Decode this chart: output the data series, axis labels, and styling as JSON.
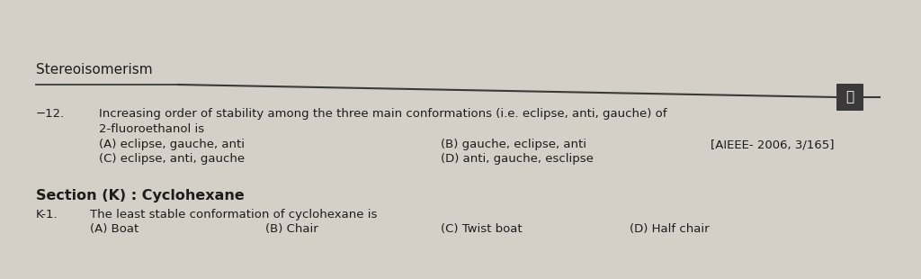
{
  "background_color": "#d4d0c8",
  "section_header": "Stereoisomerism",
  "q_number": "−12.",
  "q_text_line1": "Increasing order of stability among the three main conformations (i.e. eclipse, anti, gauche) of",
  "q_text_line2": "2-fluoroethanol is",
  "opt_A": "(A) eclipse, gauche, anti",
  "opt_B": "(B) gauche, eclipse, anti",
  "opt_C": "(C) eclipse, anti, gauche",
  "opt_D": "(D) anti, gauche, esclipse",
  "citation": "[AIEEE- 2006, 3/165]",
  "section2_header": "Section (K) : Cyclohexane",
  "k1_number": "K-1.",
  "k1_text": "The least stable conformation of cyclohexane is",
  "k1_opt_A": "(A) Boat",
  "k1_opt_B": "(B) Chair",
  "k1_opt_C": "(C) Twist boat",
  "k1_opt_D": "(D) Half chair",
  "text_color": "#1c1c1c",
  "line_color": "#3a3a3a",
  "box_color": "#3a3a3a",
  "box_text_color": "#ffffff"
}
